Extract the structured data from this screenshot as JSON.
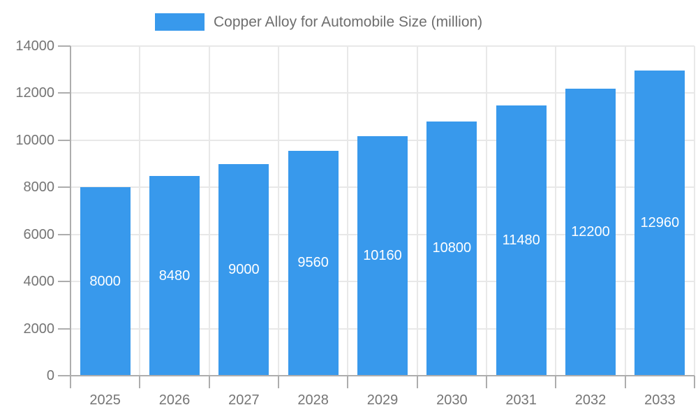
{
  "chart_data": {
    "type": "bar",
    "title": "Copper Alloy for Automobile Size (million)",
    "categories": [
      "2025",
      "2026",
      "2027",
      "2028",
      "2029",
      "2030",
      "2031",
      "2032",
      "2033"
    ],
    "values": [
      8000,
      8480,
      9000,
      9560,
      10160,
      10800,
      11480,
      12200,
      12960
    ],
    "bar_value_labels": [
      "8000",
      "8480",
      "9000",
      "9560",
      "10160",
      "10800",
      "11480",
      "12200",
      "12960"
    ],
    "xlabel": "",
    "ylabel": "",
    "ylim": [
      0,
      14000
    ],
    "yticks": [
      0,
      2000,
      4000,
      6000,
      8000,
      10000,
      12000,
      14000
    ],
    "grid": true,
    "legend_position": "top",
    "value_label_position": "inside-center",
    "colors": {
      "bar": "#3899EC",
      "bar_label": "#FFFFFF",
      "axis": "#ADADAD",
      "gridline": "#E8E8E8",
      "tick_text": "#757575",
      "legend_text": "#6E6E6E"
    }
  }
}
